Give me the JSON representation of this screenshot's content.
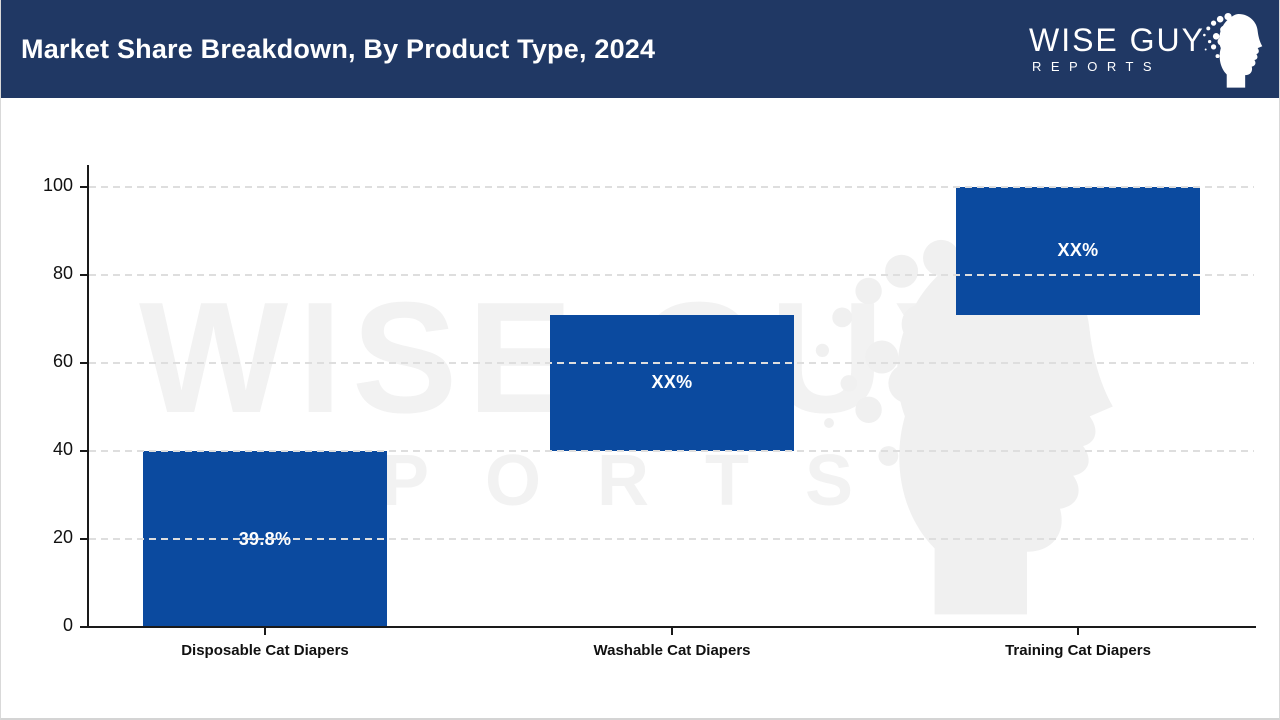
{
  "header": {
    "title": "Market Share Breakdown, By Product Type, 2024",
    "logo_line1": "WISE GUY",
    "logo_line2": "REPORTS",
    "bg_color": "#203864",
    "text_color": "#ffffff"
  },
  "watermark": {
    "line1": "WISE GUY",
    "line2": "REPORTS"
  },
  "chart_data": {
    "type": "bar",
    "subtype": "waterfall",
    "title": "Market Share Breakdown, By Product Type, 2024",
    "categories": [
      "Disposable Cat Diapers",
      "Washable Cat Diapers",
      "Training Cat Diapers"
    ],
    "segments": [
      {
        "category": "Disposable Cat Diapers",
        "start": 0,
        "end": 40,
        "label": "39.8%"
      },
      {
        "category": "Washable Cat Diapers",
        "start": 40,
        "end": 71,
        "label": "XX%"
      },
      {
        "category": "Training Cat Diapers",
        "start": 71,
        "end": 100,
        "label": "XX%"
      }
    ],
    "xlabel": "",
    "ylabel": "",
    "yticks": [
      0,
      20,
      40,
      60,
      80,
      100
    ],
    "ylim": [
      0,
      105
    ],
    "grid": "horizontal-dashed",
    "legend": "none",
    "bar_color": "#0b4a9f",
    "bar_label_color": "#ffffff",
    "axis_color": "#1a1a1a",
    "grid_color": "#dedede"
  }
}
